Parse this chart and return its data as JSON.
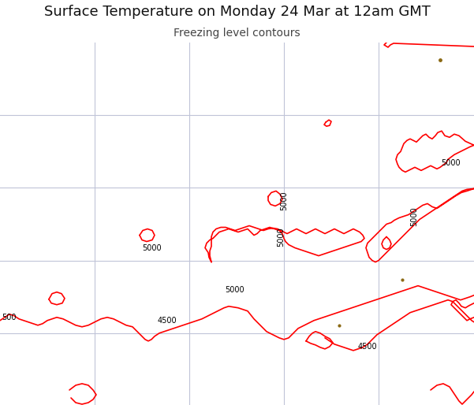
{
  "title": "Surface Temperature on Monday 24 Mar at 12am GMT",
  "subtitle": "Freezing level contours",
  "title_fontsize": 13,
  "subtitle_fontsize": 10,
  "bg_color": "#d8dcee",
  "header_bg": "#ffffff",
  "contour_color": "#ff0000",
  "contour_label_color": "#000000",
  "grid_color": "#c0c4d8",
  "figsize": [
    6.01,
    5.14
  ],
  "dpi": 100,
  "contour_linewidth": 1.2,
  "label_fontsize": 7,
  "dot_color": "#8B6914"
}
